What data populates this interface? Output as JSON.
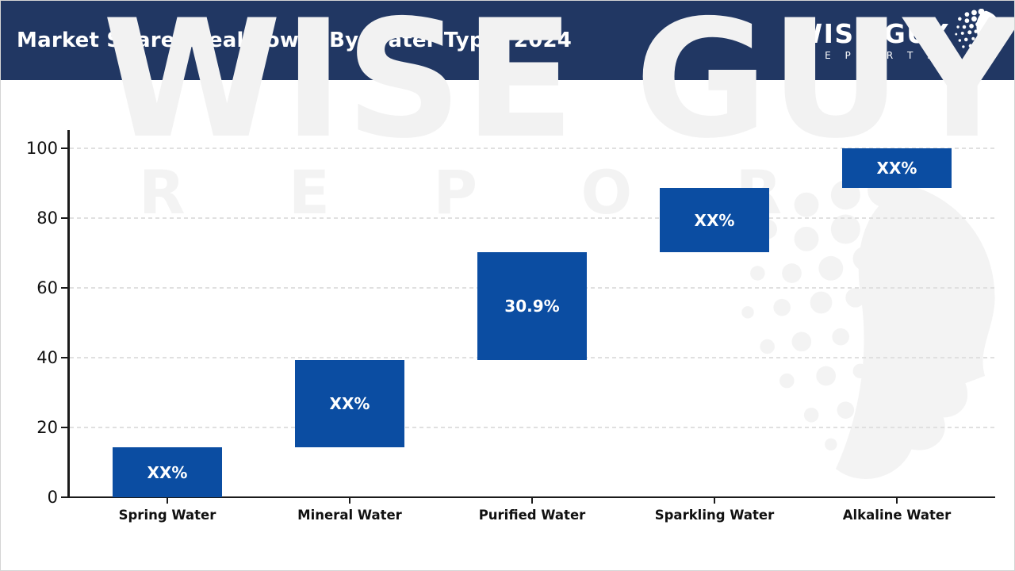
{
  "header": {
    "title": "Market Share Breakdown, By Water Type, 2024",
    "background_color": "#213763",
    "logo": {
      "wordmark": "WISE GUY",
      "subtitle": "R E P O R T S",
      "face_icon": "dotted-profile-face-icon"
    }
  },
  "watermark": {
    "line1": "WISE GUY",
    "line2": "R E P O R T S",
    "face_icon": "dotted-profile-face-watermark"
  },
  "chart_data": {
    "type": "bar",
    "variant": "waterfall",
    "title": "Market Share Breakdown, By Water Type, 2024",
    "xlabel": "",
    "ylabel": "",
    "ylim": [
      0,
      104
    ],
    "yticks": [
      0,
      20,
      40,
      60,
      80,
      100
    ],
    "grid": "horizontal-dashed",
    "legend": "none",
    "bar_color": "#0b4da2",
    "bar_label_color": "#ffffff",
    "axis_color": "#1a1a1a",
    "grid_color": "#e0e0e0",
    "categories": [
      "Spring Water",
      "Mineral Water",
      "Purified Water",
      "Sparkling Water",
      "Alkaline Water"
    ],
    "segments": [
      {
        "category": "Spring Water",
        "start": 0,
        "end": 14.3,
        "value": 14.3,
        "label": "XX%"
      },
      {
        "category": "Mineral Water",
        "start": 14.3,
        "end": 39.3,
        "value": 25.0,
        "label": "XX%"
      },
      {
        "category": "Purified Water",
        "start": 39.3,
        "end": 70.2,
        "value": 30.9,
        "label": "30.9%"
      },
      {
        "category": "Sparkling Water",
        "start": 70.2,
        "end": 88.6,
        "value": 18.4,
        "label": "XX%"
      },
      {
        "category": "Alkaline Water",
        "start": 88.6,
        "end": 100.0,
        "value": 11.4,
        "label": "XX%"
      }
    ]
  }
}
